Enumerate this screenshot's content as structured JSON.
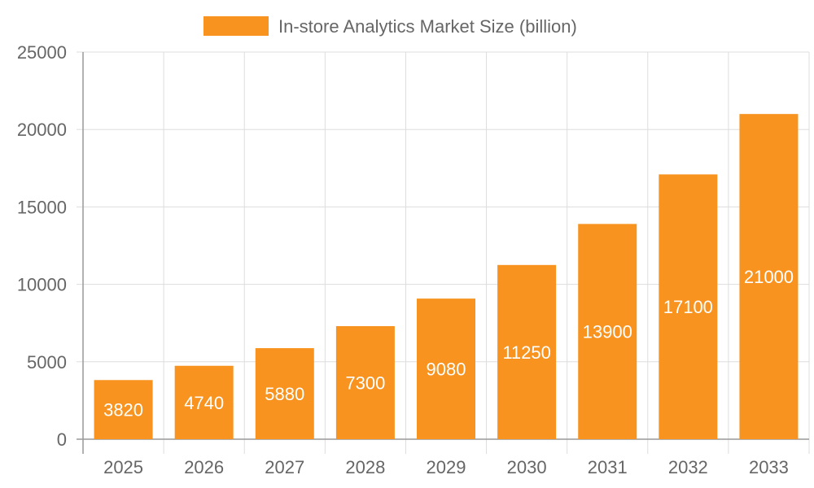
{
  "chart_data": {
    "type": "bar",
    "categories": [
      "2025",
      "2026",
      "2027",
      "2028",
      "2029",
      "2030",
      "2031",
      "2032",
      "2033"
    ],
    "series": [
      {
        "name": "In-store Analytics Market Size (billion)",
        "values": [
          3820,
          4740,
          5880,
          7300,
          9080,
          11250,
          13900,
          17100,
          21000
        ],
        "color": "#f7931e"
      }
    ],
    "title": "",
    "xlabel": "",
    "ylabel": "",
    "ylim": [
      0,
      25000
    ],
    "yticks": [
      0,
      5000,
      10000,
      15000,
      20000,
      25000
    ],
    "grid": true,
    "legend_position": "top-center",
    "data_labels": true
  },
  "colors": {
    "bar": "#f7931e",
    "grid": "#dddddd",
    "text": "#666666",
    "label_text": "#ffffff"
  }
}
